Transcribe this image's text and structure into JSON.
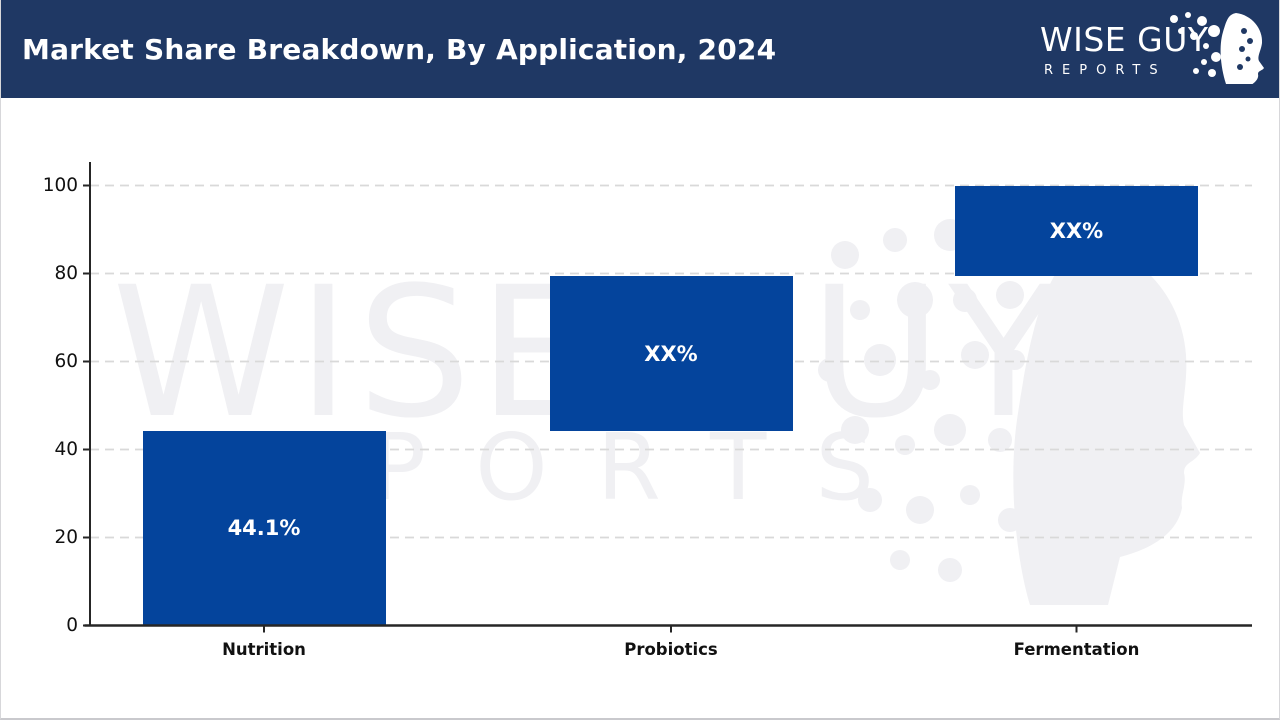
{
  "header": {
    "title": "Market Share Breakdown, By Application, 2024",
    "logo_line1": "WISE GUY",
    "logo_line2": "REPORTS"
  },
  "watermark": {
    "line1": "WISE GUY",
    "line2": "R E P O R T S"
  },
  "chart_data": {
    "type": "bar",
    "subtype": "floating-waterfall",
    "title": "Market Share Breakdown, By Application, 2024",
    "categories": [
      "Nutrition",
      "Probiotics",
      "Fermentation"
    ],
    "bars": [
      {
        "category": "Nutrition",
        "label": "44.1%",
        "start": 0,
        "end": 44.1
      },
      {
        "category": "Probiotics",
        "label": "XX%",
        "start": 44.1,
        "end": 79.4
      },
      {
        "category": "Fermentation",
        "label": "XX%",
        "start": 79.4,
        "end": 100
      }
    ],
    "xlabel": "",
    "ylabel": "",
    "yticks": [
      0,
      20,
      40,
      60,
      80,
      100
    ],
    "ylim": [
      0,
      105
    ],
    "grid": "horizontal-dashed",
    "legend": "none",
    "bar_color": "#04449c",
    "grid_color": "#d9d9d9",
    "axis_color": "#262626",
    "tick_label_color": "#111111",
    "value_label_color": "#ffffff"
  },
  "colors": {
    "header_bg": "#1f3864",
    "page_bg": "#ffffff",
    "watermark": "#f0f0f3"
  }
}
